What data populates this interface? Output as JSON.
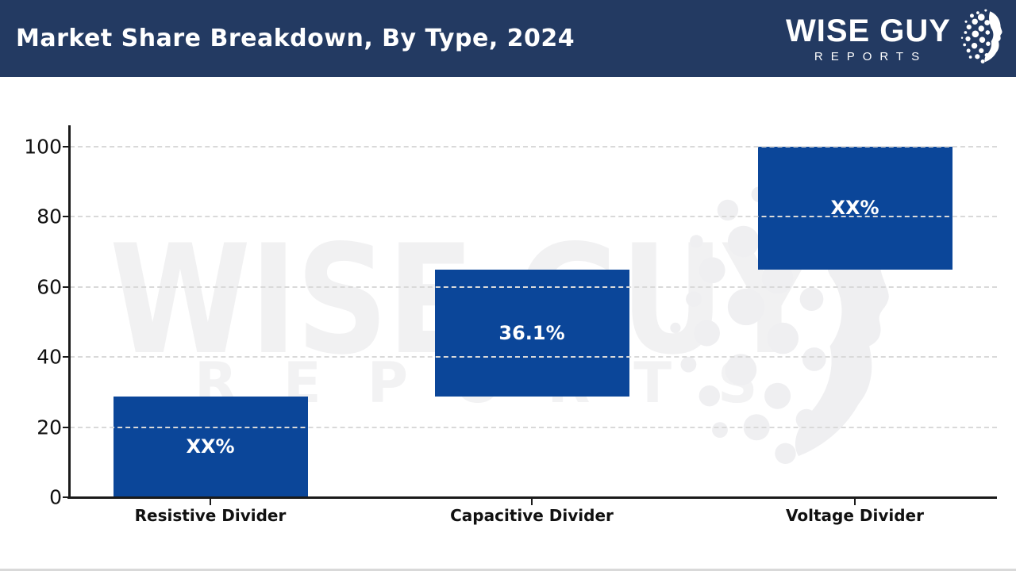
{
  "header": {
    "title": "Market Share Breakdown, By Type, 2024",
    "bg_color": "#233a62",
    "logo": {
      "line1": "WISE GUY",
      "line2": "REPORTS"
    }
  },
  "watermark": {
    "line1": "WISE GUY",
    "line2": "REPORTS"
  },
  "chart_data": {
    "type": "bar",
    "subtype": "floating-stacked-waterfall",
    "title": "Market Share Breakdown, By Type, 2024",
    "categories": [
      "Resistive Divider",
      "Capacitive Divider",
      "Voltage Divider"
    ],
    "segments": [
      {
        "category": "Resistive Divider",
        "start": 0,
        "end": 28.8,
        "label": "XX%"
      },
      {
        "category": "Capacitive Divider",
        "start": 28.8,
        "end": 64.9,
        "label": "36.1%"
      },
      {
        "category": "Voltage Divider",
        "start": 64.9,
        "end": 100,
        "label": "XX%"
      }
    ],
    "bar_color": "#0b4699",
    "value_label_color": "#ffffff",
    "xlabel": "",
    "ylabel": "",
    "ylim": [
      0,
      100
    ],
    "yticks": [
      0,
      20,
      40,
      60,
      80,
      100
    ],
    "grid": "dashed-horizontal",
    "legend": "none"
  }
}
